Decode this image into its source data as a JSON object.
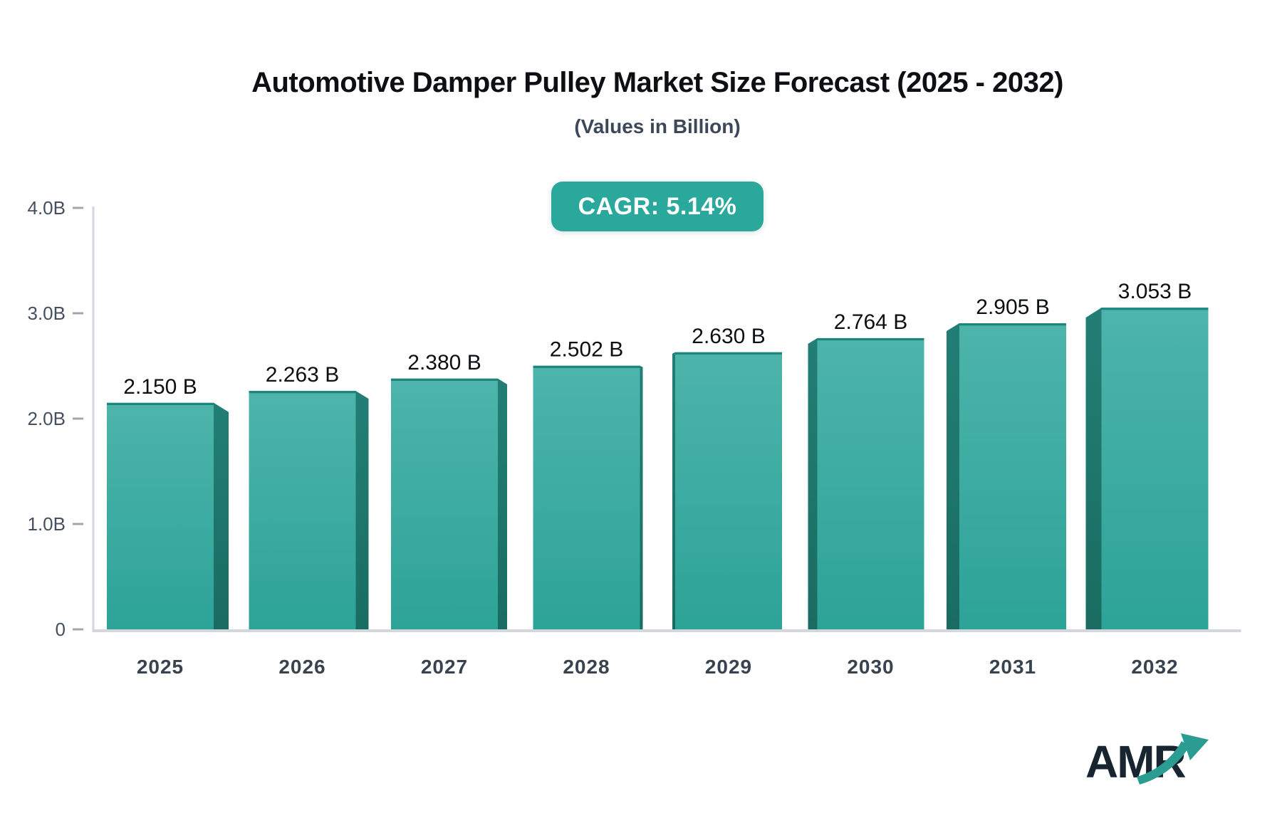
{
  "header": {
    "title": "Automotive Damper Pulley Market Size Forecast (2025 - 2032)",
    "subtitle": "(Values in Billion)",
    "cagr_label": "CAGR: 5.14%"
  },
  "chart_data": {
    "type": "bar",
    "title": "Automotive Damper Pulley Market Size Forecast (2025 - 2032)",
    "subtitle": "(Values in Billion)",
    "annotation": "CAGR: 5.14%",
    "categories": [
      "2025",
      "2026",
      "2027",
      "2028",
      "2029",
      "2030",
      "2031",
      "2032"
    ],
    "values": [
      2.15,
      2.263,
      2.38,
      2.502,
      2.63,
      2.764,
      2.905,
      3.053
    ],
    "value_labels": [
      "2.150 B",
      "2.263 B",
      "2.380 B",
      "2.502 B",
      "2.630 B",
      "2.764 B",
      "2.905 B",
      "3.053 B"
    ],
    "ytick_values": [
      0,
      1,
      2,
      3,
      4
    ],
    "ytick_labels": [
      "0",
      "1.0B",
      "2.0B",
      "3.0B",
      "4.0B"
    ],
    "ylim": [
      0,
      4
    ],
    "unit": "Billion",
    "grid": "off",
    "legend": "none",
    "style": "pseudo-3d-bars, sides face outward from chart center"
  },
  "colors": {
    "badge_bg": "#2aa89b",
    "bar_face_top": "#4db4ab",
    "bar_face_bottom": "#2da397",
    "bar_top_edge": "#1e857a",
    "bar_side_top": "#227f75",
    "bar_side_bottom": "#1a6c62",
    "axis_line": "#d3d6dc",
    "tick_mark": "#a0a7b2",
    "y_label": "#454f5e",
    "x_label": "#39434f",
    "value_label": "#0e0f11",
    "logo_text": "#182430",
    "logo_arrow": "#2a9c91"
  },
  "logo": {
    "text": "AMR"
  }
}
